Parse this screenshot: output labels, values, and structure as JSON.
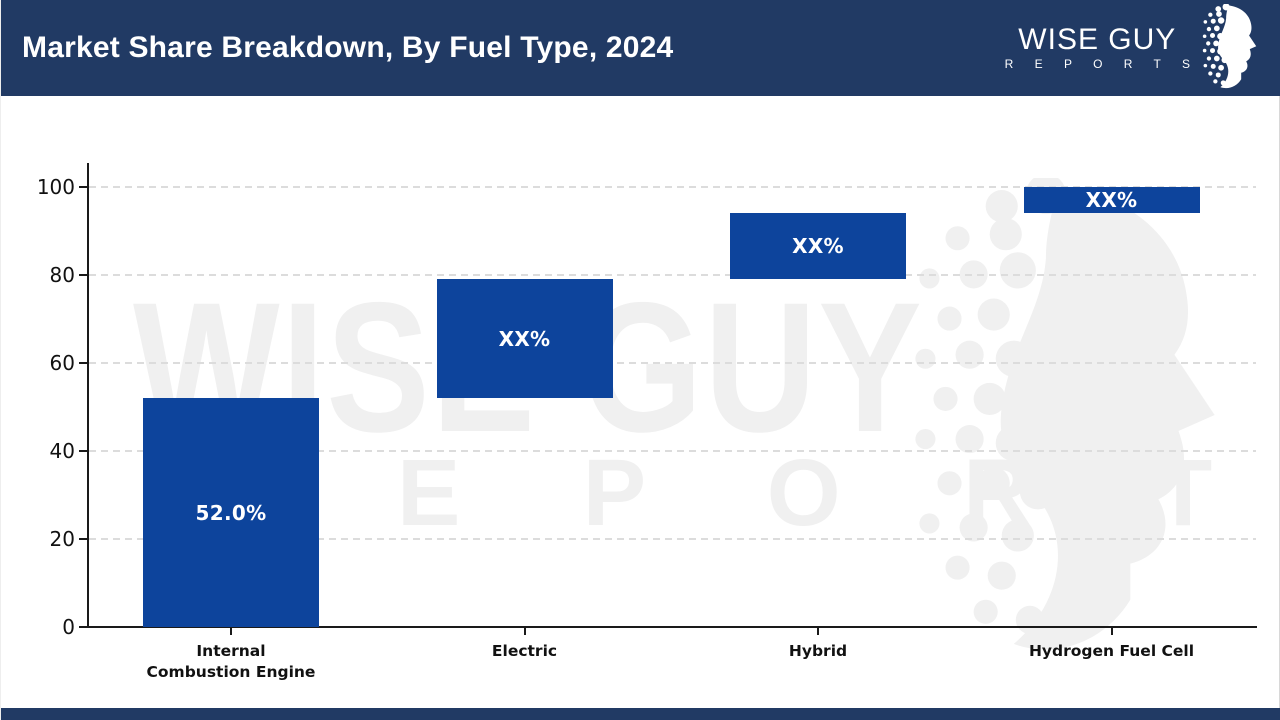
{
  "page": {
    "bg": "#ffffff",
    "border": "#d8d8d8"
  },
  "header": {
    "bg": "#213a64",
    "title": "Market Share Breakdown, By Fuel Type, 2024",
    "logo": {
      "line1": "WISE GUY",
      "line2": "R E P O R T S"
    }
  },
  "footer": {
    "bg": "#213a64"
  },
  "watermark": {
    "line1": "WISE GUY",
    "line2": "R E P O R T S",
    "color": "#f0f0f0"
  },
  "chart_data": {
    "type": "bar",
    "variant": "waterfall",
    "title": "Market Share Breakdown, By Fuel Type, 2024",
    "categories": [
      "Internal Combustion Engine",
      "Electric",
      "Hybrid",
      "Hydrogen Fuel Cell"
    ],
    "category_display_lines": [
      [
        "Internal",
        "Combustion Engine"
      ],
      [
        "Electric"
      ],
      [
        "Hybrid"
      ],
      [
        "Hydrogen Fuel Cell"
      ]
    ],
    "unit": "%",
    "ylim": [
      0,
      100
    ],
    "yticks": [
      0,
      20,
      40,
      60,
      80,
      100
    ],
    "grid": "horizontal-dashed",
    "legend": "none",
    "bar_color": "#0d449c",
    "bar_label_color": "#ffffff",
    "segments": [
      {
        "category": "Internal Combustion Engine",
        "start": 0,
        "end": 52,
        "value": 52.0,
        "label": "52.0%"
      },
      {
        "category": "Electric",
        "start": 52,
        "end": 79,
        "value": 27.0,
        "label": "XX%"
      },
      {
        "category": "Hybrid",
        "start": 79,
        "end": 94,
        "value": 15.0,
        "label": "XX%"
      },
      {
        "category": "Hydrogen Fuel Cell",
        "start": 94,
        "end": 100,
        "value": 6.0,
        "label": "XX%"
      }
    ]
  }
}
